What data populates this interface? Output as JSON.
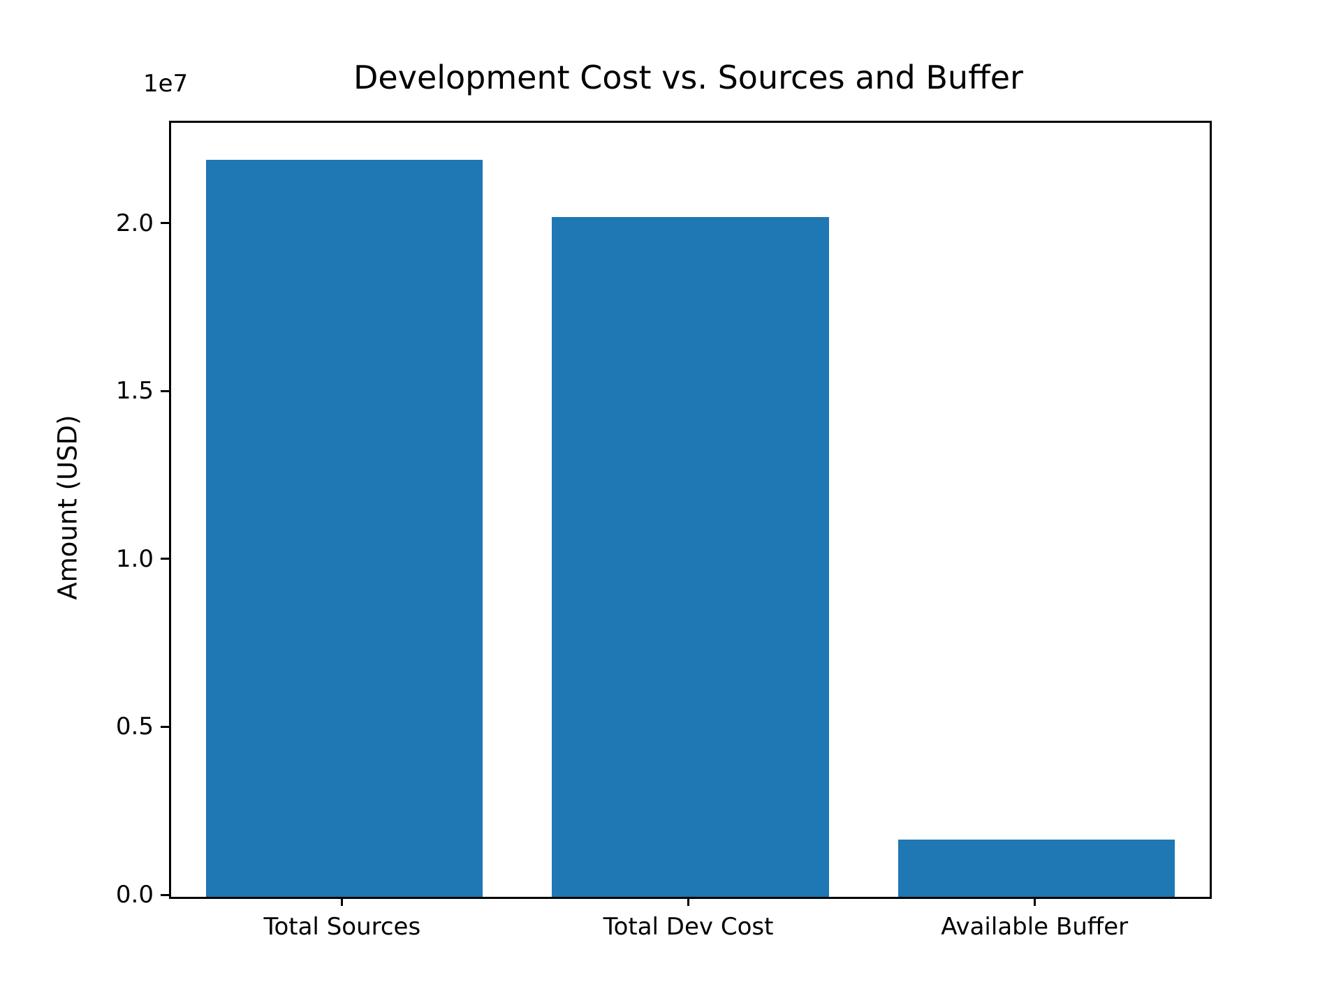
{
  "chart_data": {
    "type": "bar",
    "title": "Development Cost vs. Sources and Buffer",
    "xlabel": "",
    "ylabel": "Amount (USD)",
    "offset_text": "1e7",
    "categories": [
      "Total Sources",
      "Total Dev Cost",
      "Available Buffer"
    ],
    "values": [
      21950000,
      20250000,
      1700000
    ],
    "bar_color": "#1f77b4",
    "ylim": [
      0,
      23047500
    ],
    "yticks": [
      0,
      5000000,
      10000000,
      15000000,
      20000000
    ],
    "ytick_labels": [
      "0.0",
      "0.5",
      "1.0",
      "1.5",
      "2.0"
    ],
    "bar_width_fraction": 0.26667,
    "grid": false,
    "legend_position": "none"
  }
}
